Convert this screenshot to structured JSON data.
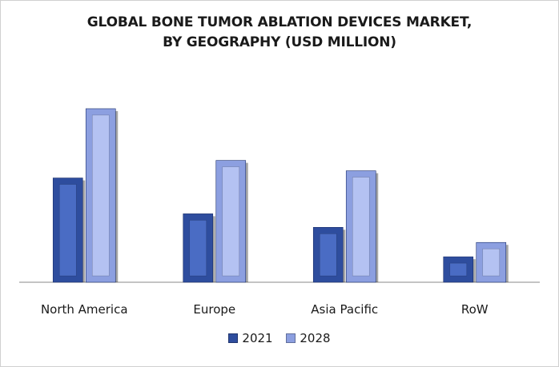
{
  "chart_data": {
    "type": "bar",
    "title_line1": "GLOBAL BONE TUMOR ABLATION DEVICES MARKET,",
    "title_line2": "BY GEOGRAPHY (USD MILLION)",
    "categories": [
      "North America",
      "Europe",
      "Asia Pacific",
      "RoW"
    ],
    "series": [
      {
        "name": "2021",
        "values": [
          131,
          86,
          69,
          32
        ],
        "color": "#2e4d9e",
        "inner": "#4a6cc4"
      },
      {
        "name": "2028",
        "values": [
          218,
          153,
          140,
          50
        ],
        "color": "#8c9fe0",
        "inner": "#b4c2f2"
      }
    ],
    "ylim": [
      0,
      230
    ],
    "grid": false,
    "legend": "bottom",
    "xlabel": "",
    "ylabel": ""
  }
}
